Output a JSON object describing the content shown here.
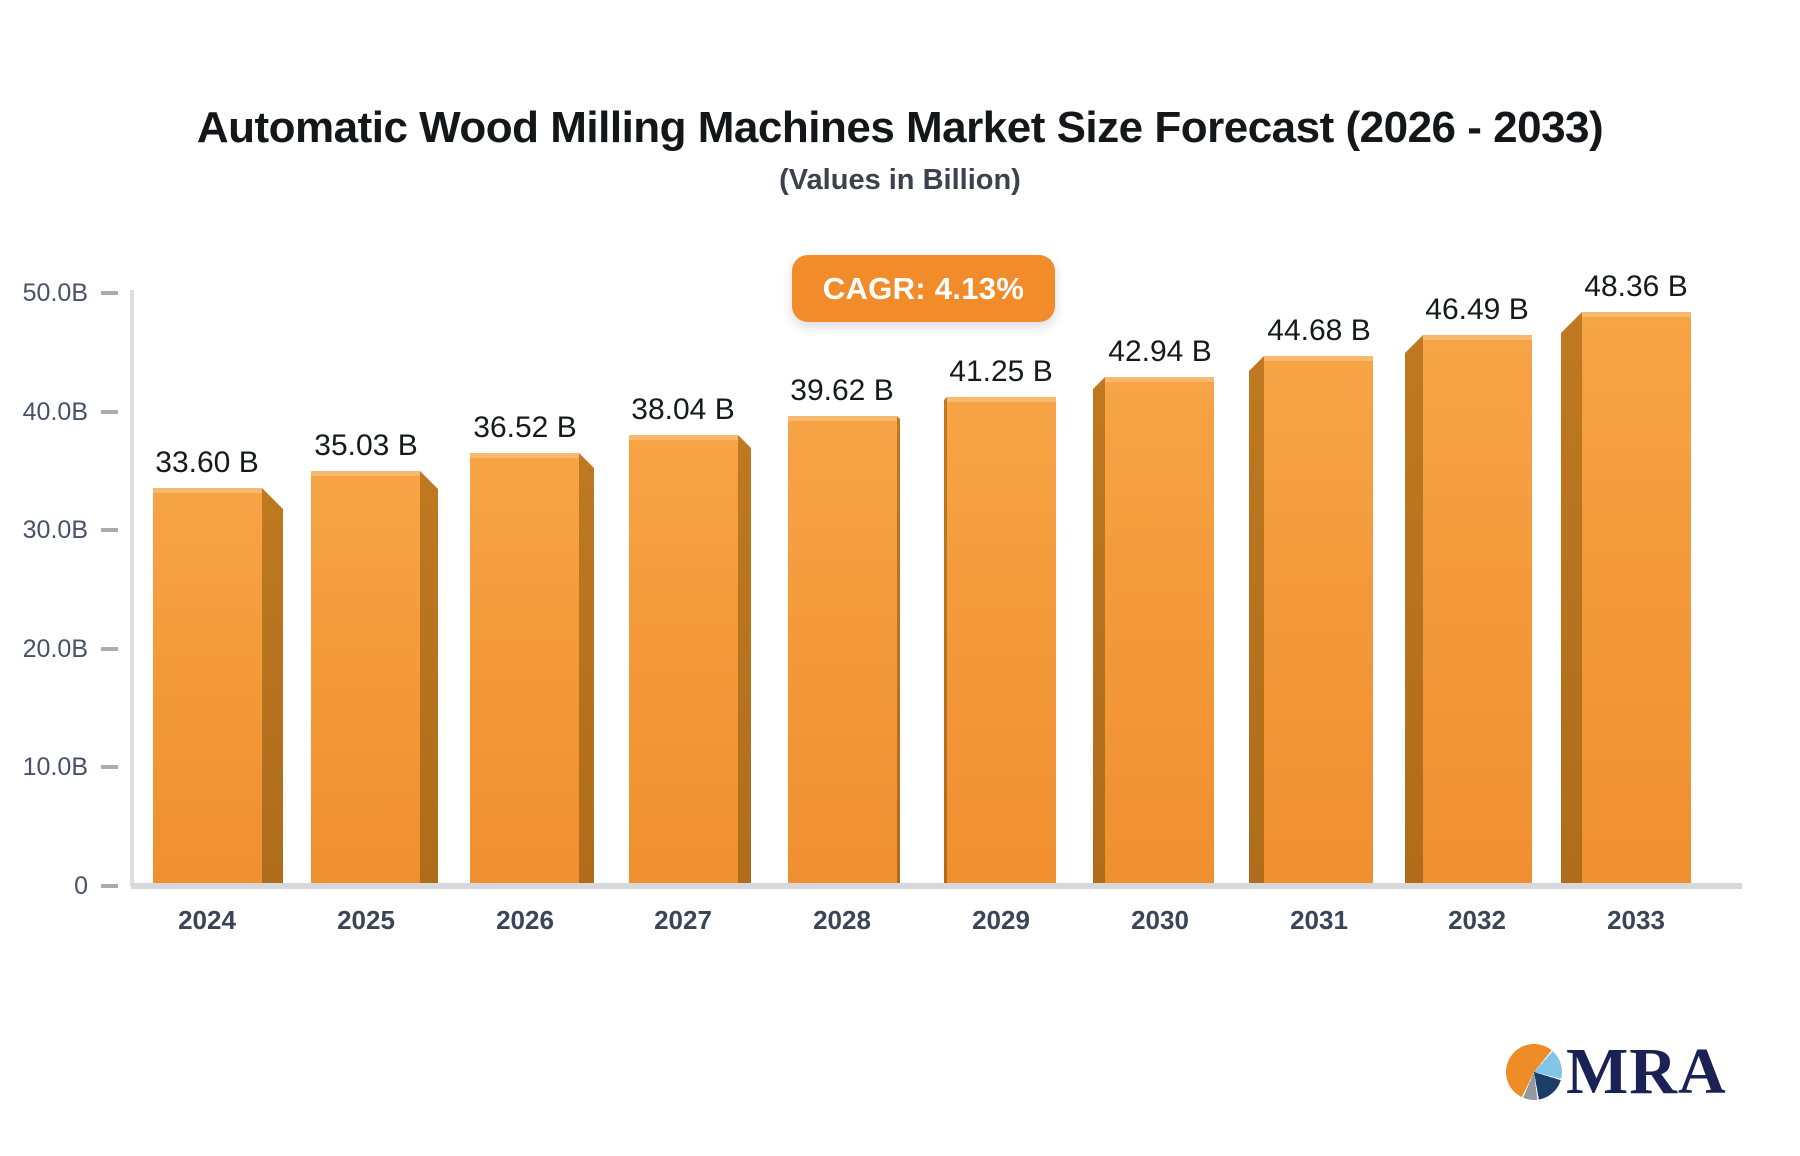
{
  "header": {
    "title": "Automatic Wood Milling Machines Market Size Forecast (2026 - 2033)",
    "subtitle": "(Values in Billion)"
  },
  "badge": {
    "label": "CAGR: 4.13%",
    "color": "#F28C2A",
    "text_color": "#FFFFFF"
  },
  "chart_data": {
    "type": "bar",
    "title": "Automatic Wood Milling Machines Market Size Forecast (2026 - 2033)",
    "subtitle": "(Values in Billion)",
    "annotation": "CAGR: 4.13%",
    "categories": [
      "2024",
      "2025",
      "2026",
      "2027",
      "2028",
      "2029",
      "2030",
      "2031",
      "2032",
      "2033"
    ],
    "values": [
      33.6,
      35.03,
      36.52,
      38.04,
      39.62,
      41.25,
      42.94,
      44.68,
      46.49,
      48.36
    ],
    "value_labels": [
      "33.60 B",
      "35.03 B",
      "36.52 B",
      "38.04 B",
      "39.62 B",
      "41.25 B",
      "42.94 B",
      "44.68 B",
      "46.49 B",
      "48.36 B"
    ],
    "y_ticks": [
      {
        "label": "50.0B",
        "value": 50
      },
      {
        "label": "40.0B",
        "value": 40
      },
      {
        "label": "30.0B",
        "value": 30
      },
      {
        "label": "20.0B",
        "value": 20
      },
      {
        "label": "10.0B",
        "value": 10
      },
      {
        "label": "0",
        "value": 0
      }
    ],
    "ylim": [
      0,
      50
    ],
    "xlabel": "",
    "ylabel": "",
    "grid": false,
    "legend": false,
    "bar_color": "#F49B3A",
    "bar_side_color": "#B9731E",
    "axis_color": "#DBDDE2",
    "tick_text_color": "#47526A"
  },
  "logo": {
    "text": "MRA",
    "text_color": "#1A2154",
    "pie_colors": [
      "#EE8C28",
      "#82C5E9",
      "#1C3E66",
      "#97999E"
    ]
  }
}
